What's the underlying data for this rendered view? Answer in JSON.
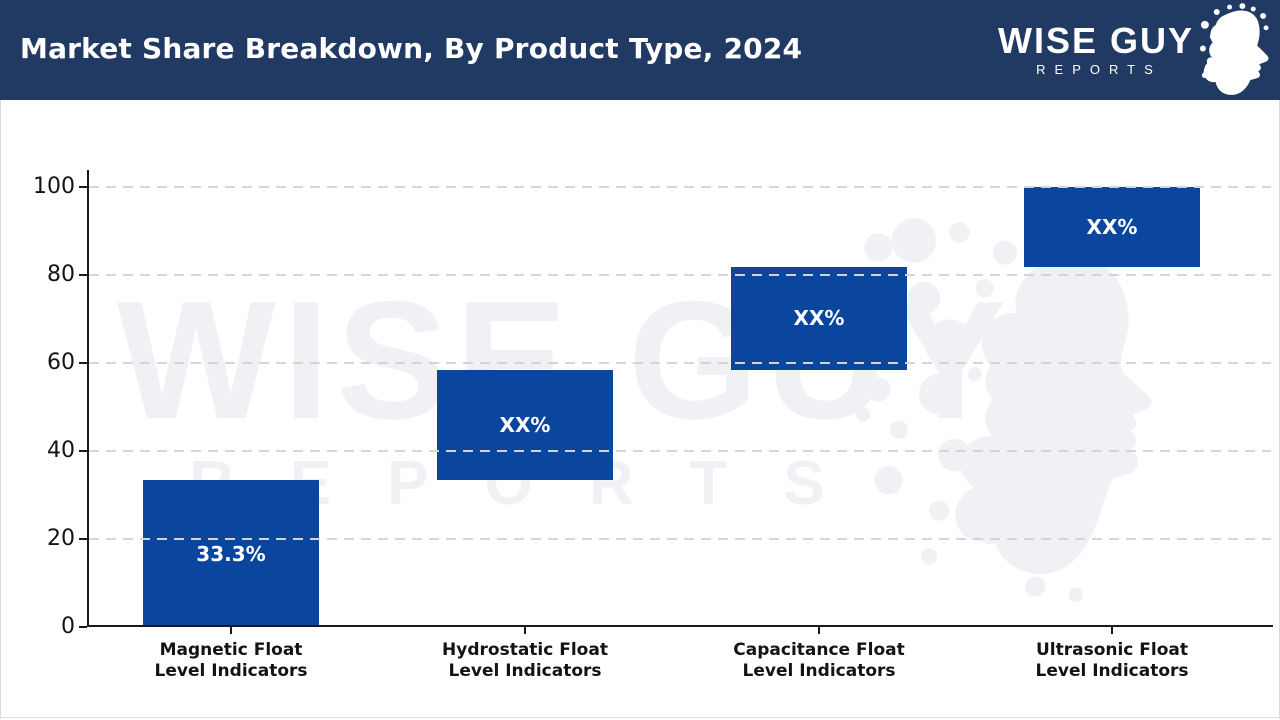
{
  "header": {
    "title": "Market Share Breakdown, By Product Type, 2024",
    "bg_color": "#213A64",
    "logo": {
      "line1": "WISE GUY",
      "line2": "REPORTS"
    }
  },
  "watermark": {
    "line1": "WISE GUY",
    "line2": "REPORTS"
  },
  "chart_data": {
    "type": "bar",
    "subtype": "waterfall",
    "title": "Market Share Breakdown, By Product Type, 2024",
    "categories": [
      [
        "Magnetic Float",
        "Level Indicators"
      ],
      [
        "Hydrostatic Float",
        "Level Indicators"
      ],
      [
        "Capacitance Float",
        "Level Indicators"
      ],
      [
        "Ultrasonic Float",
        "Level Indicators"
      ]
    ],
    "segments": [
      {
        "start": 0,
        "end": 33.3,
        "label": "33.3%"
      },
      {
        "start": 33.3,
        "end": 58.5,
        "label": "XX%"
      },
      {
        "start": 58.5,
        "end": 81.9,
        "label": "XX%"
      },
      {
        "start": 81.9,
        "end": 100,
        "label": "XX%"
      }
    ],
    "ylabel": "",
    "xlabel": "",
    "ylim": [
      0,
      100
    ],
    "yticks": [
      0,
      20,
      40,
      60,
      80,
      100
    ],
    "grid": "horizontal-dashed",
    "legend": "none",
    "bar_color": "#0B469E",
    "bar_label_color": "#ffffff",
    "gridline_color": "#d5d5d5",
    "axis_color": "#1a1a1a"
  }
}
